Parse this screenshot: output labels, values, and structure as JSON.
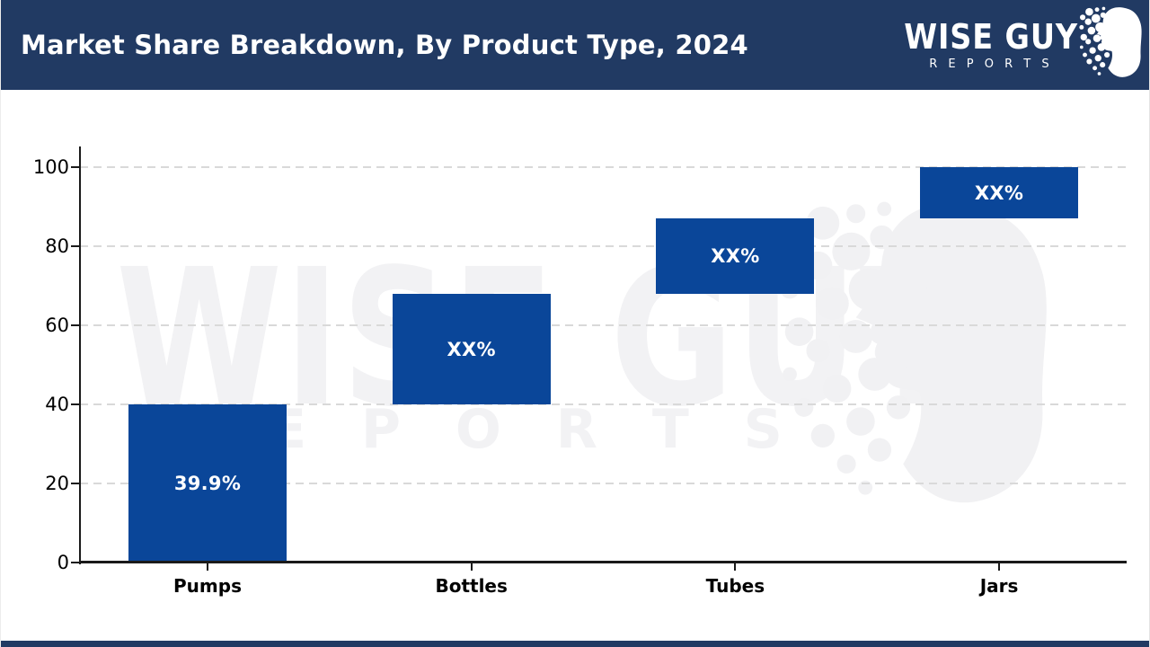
{
  "header": {
    "title": "Market Share Breakdown, By Product Type, 2024",
    "logo": {
      "wordmark": "WISE GUY",
      "subtext": "R E P O R T S"
    }
  },
  "watermark": {
    "wordmark": "WISE GUY",
    "subtext": "R E P O R T S"
  },
  "colors": {
    "header_bg": "#213A63",
    "bar_fill": "#0A4699",
    "bar_label": "#FFFFFF",
    "gridline": "#D9D9D9",
    "axis": "#1A1A1A",
    "watermark": "#F2F2F4",
    "bottom_bar": "#213A63"
  },
  "chart_data": {
    "type": "bar",
    "subtype": "waterfall",
    "title": "Market Share Breakdown, By Product Type, 2024",
    "categories": [
      "Pumps",
      "Bottles",
      "Tubes",
      "Jars"
    ],
    "series": [
      {
        "name": "Market Share",
        "segments": [
          {
            "category": "Pumps",
            "start": 0,
            "end": 39.9,
            "label": "39.9%"
          },
          {
            "category": "Bottles",
            "start": 39.9,
            "end": 68,
            "label": "XX%"
          },
          {
            "category": "Tubes",
            "start": 68,
            "end": 87,
            "label": "XX%"
          },
          {
            "category": "Jars",
            "start": 87,
            "end": 100,
            "label": "XX%"
          }
        ]
      }
    ],
    "xlabel": "",
    "ylabel": "",
    "ylim": [
      0,
      100
    ],
    "yticks": [
      0,
      20,
      40,
      60,
      80,
      100
    ],
    "grid": "dashed-horizontal",
    "legend": "none"
  }
}
